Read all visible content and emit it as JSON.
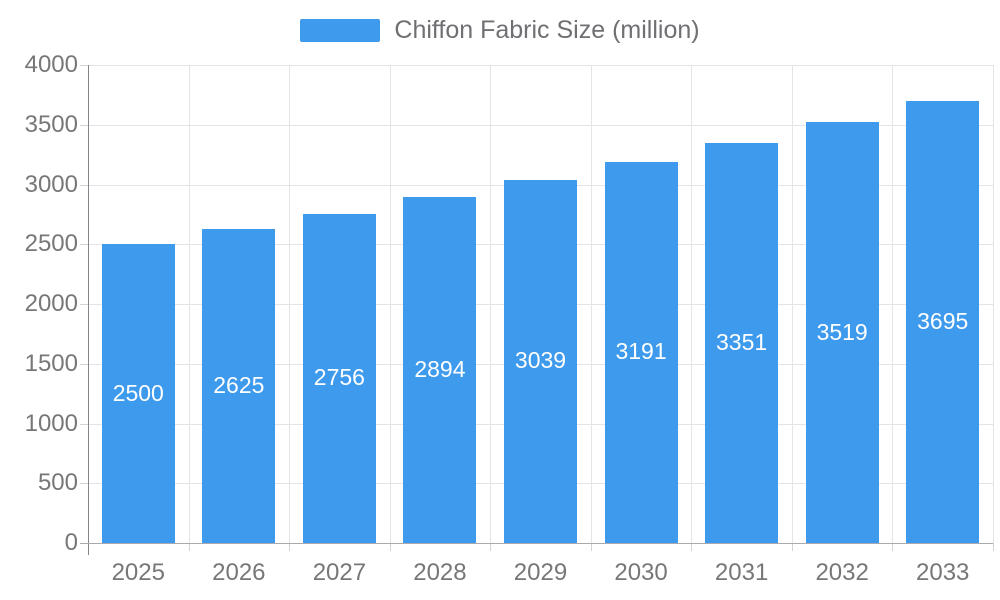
{
  "legend": {
    "label": "Chiffon Fabric Size (million)"
  },
  "colors": {
    "bar": "#3D9AEC",
    "bar_label": "#ffffff",
    "axis_line_y": "#85868b",
    "axis_line_x": "#a9aaad",
    "grid_line": "#e3e3e8",
    "tick_mark": "#d2d2d7",
    "tick_label": "#777777",
    "legend_text": "#6f7073"
  },
  "chart_data": {
    "type": "bar",
    "title": "Chiffon Fabric Size (million)",
    "categories": [
      "2025",
      "2026",
      "2027",
      "2028",
      "2029",
      "2030",
      "2031",
      "2032",
      "2033"
    ],
    "values": [
      2500,
      2625,
      2756,
      2894,
      3039,
      3191,
      3351,
      3519,
      3695
    ],
    "xlabel": "",
    "ylabel": "",
    "ylim": [
      0,
      4000
    ],
    "y_ticks": [
      0,
      500,
      1000,
      1500,
      2000,
      2500,
      3000,
      3500,
      4000
    ],
    "grid": true,
    "legend_position": "top",
    "bar_labels": "inside-centered"
  }
}
